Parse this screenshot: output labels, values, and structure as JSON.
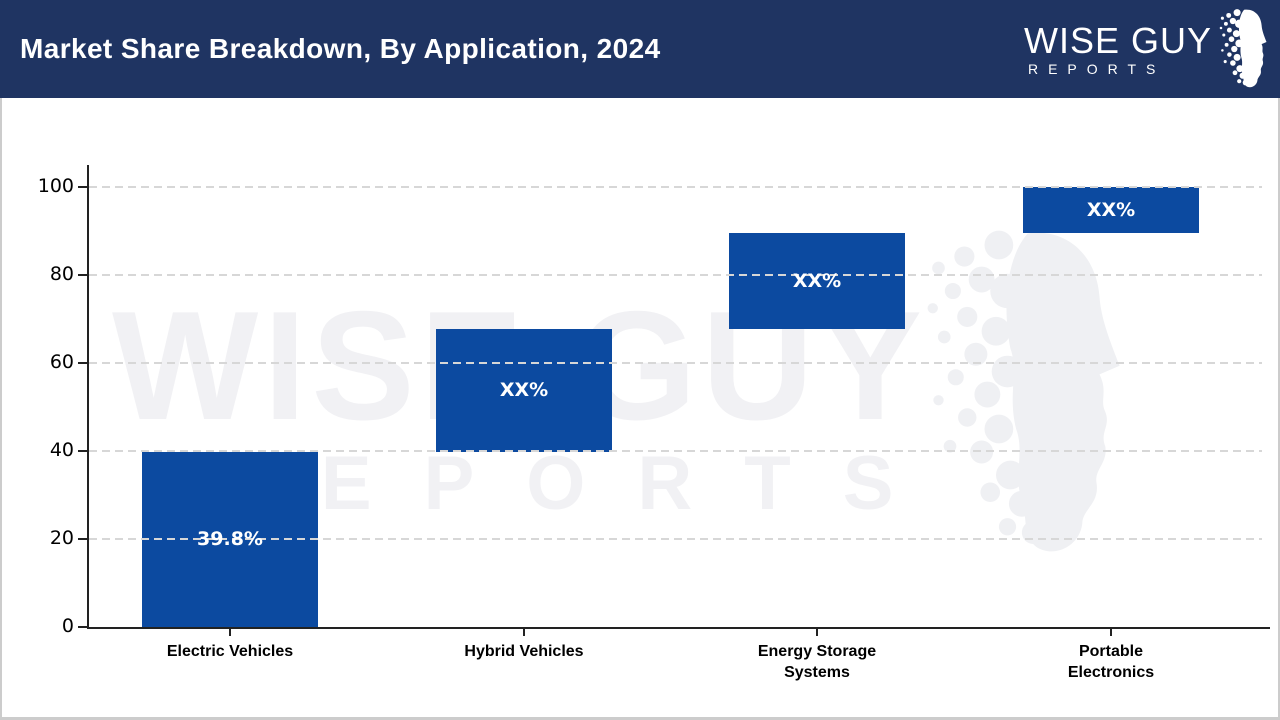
{
  "header": {
    "title": "Market Share Breakdown, By Application, 2024",
    "logo": {
      "brand_line1": "WISE GUY",
      "brand_line2": "REPORTS",
      "icon": "head-profile-dots-icon"
    },
    "bg_color": "#1f3462"
  },
  "watermark": {
    "brand_line1": "WISE GUY",
    "brand_line2": "REPORTS",
    "icon": "head-profile-dots-icon",
    "color": "#f1f1f4"
  },
  "chart_data": {
    "type": "bar",
    "subtype": "stacked-percentage-waterfall",
    "title": "Market Share Breakdown, By Application, 2024",
    "xlabel": "",
    "ylabel": "",
    "ylim": [
      0,
      100
    ],
    "yticks": [
      0,
      20,
      40,
      60,
      80,
      100
    ],
    "grid": "dashed-horizontal",
    "legend": null,
    "bar_color": "#0c4aa0",
    "bar_label_color": "#ffffff",
    "axis_color": "#222222",
    "grid_color": "#d7d7d7",
    "categories": [
      "Electric Vehicles",
      "Hybrid Vehicles",
      "Energy Storage Systems",
      "Portable Electronics"
    ],
    "category_label_lines": [
      [
        "Electric Vehicles"
      ],
      [
        "Hybrid Vehicles"
      ],
      [
        "Energy Storage",
        "Systems"
      ],
      [
        "Portable",
        "Electronics"
      ]
    ],
    "segments": [
      {
        "category": "Electric Vehicles",
        "value_label": "39.8%",
        "start": 0,
        "end": 39.8
      },
      {
        "category": "Hybrid Vehicles",
        "value_label": "XX%",
        "start": 39.8,
        "end": 67.8
      },
      {
        "category": "Energy Storage Systems",
        "value_label": "XX%",
        "start": 67.8,
        "end": 89.5
      },
      {
        "category": "Portable Electronics",
        "value_label": "XX%",
        "start": 89.5,
        "end": 100
      }
    ]
  }
}
